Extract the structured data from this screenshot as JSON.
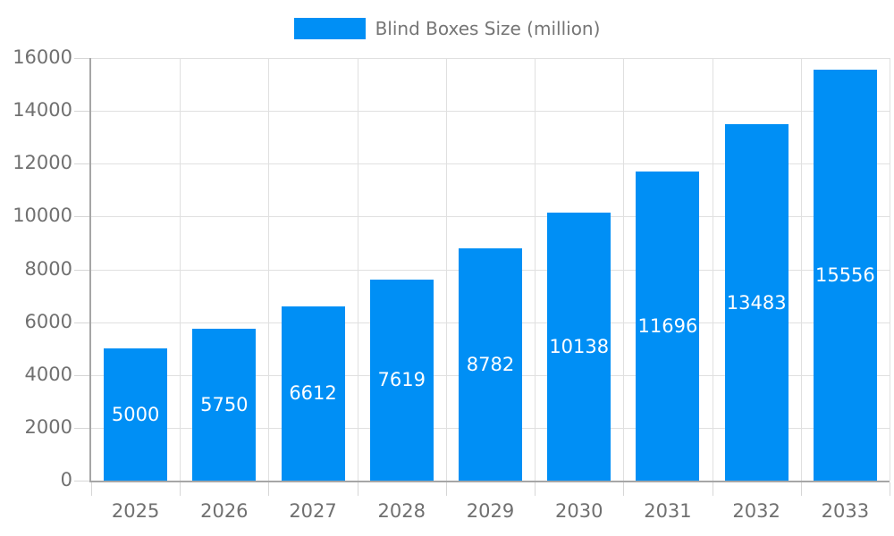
{
  "chart_data": {
    "type": "bar",
    "title": "",
    "categories": [
      "2025",
      "2026",
      "2027",
      "2028",
      "2029",
      "2030",
      "2031",
      "2032",
      "2033"
    ],
    "series": [
      {
        "name": "Blind Boxes Size (million)",
        "values": [
          5000,
          5750,
          6612,
          7619,
          8782,
          10138,
          11696,
          13483,
          15556
        ]
      }
    ],
    "xlabel": "",
    "ylabel": "",
    "ylim": [
      0,
      16000
    ],
    "yticks": [
      0,
      2000,
      4000,
      6000,
      8000,
      10000,
      12000,
      14000,
      16000
    ],
    "grid": true,
    "legend_position": "top",
    "value_label_position": "inside-center"
  },
  "colors": {
    "bar": "#008ff5",
    "axis_line": "#a6a6a6",
    "gridline": "#e0e0e0",
    "tick": "#d6d6d6",
    "axis_text": "#707070",
    "value_label_text": "#ffffff",
    "legend_text": "#757575"
  }
}
